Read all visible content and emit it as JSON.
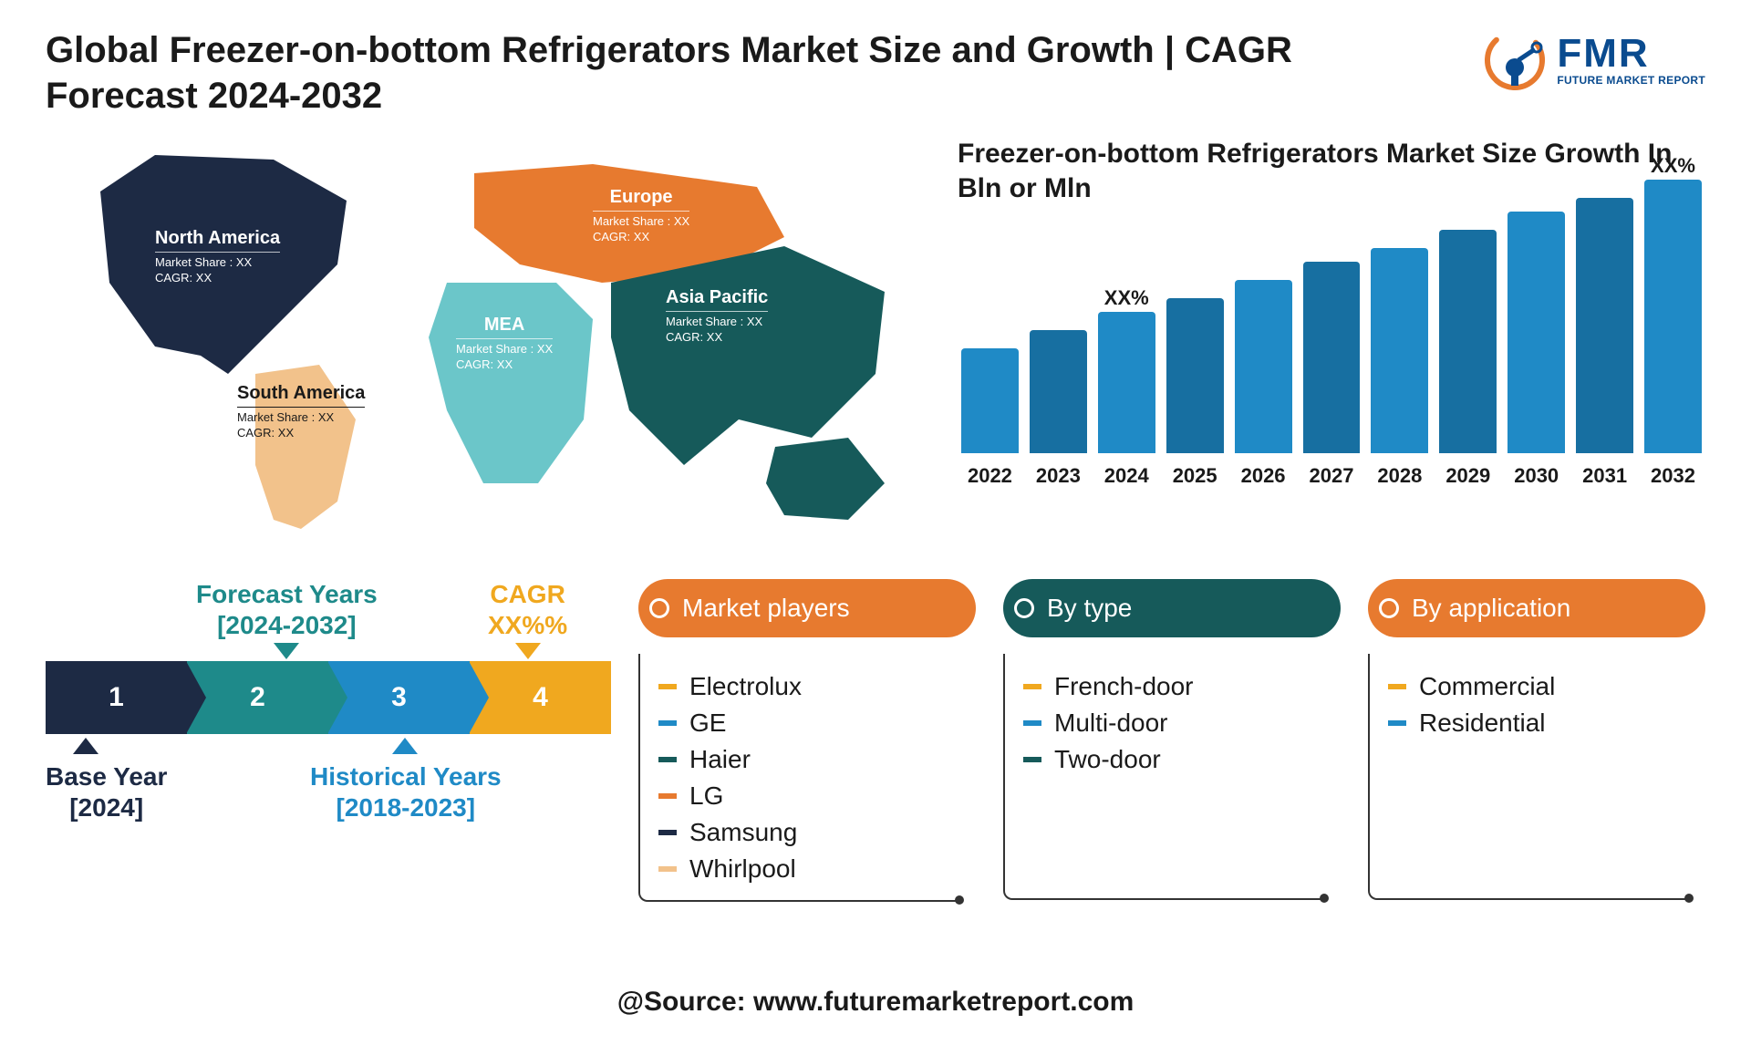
{
  "title": "Global Freezer-on-bottom Refrigerators Market Size and Growth | CAGR Forecast 2024-2032",
  "logo": {
    "fmr": "FMR",
    "sub": "FUTURE MARKET REPORT",
    "icon_color": "#e77a2f",
    "text_color": "#0a4b8f"
  },
  "palette": {
    "navy": "#1d2a44",
    "orange": "#e77a2f",
    "teal": "#1e8a8a",
    "teal_dark": "#165a5a",
    "darkteal": "#0f5c5c",
    "light_teal": "#6bc6c9",
    "sand": "#f2c28b",
    "blue": "#1f8ac6",
    "blue_dark": "#176fa1",
    "gold": "#f0a81f",
    "bar_blue": "#1f8ac6",
    "bar_dark": "#176fa1",
    "text": "#1a1a1a"
  },
  "map": {
    "regions": {
      "na": {
        "name": "North America",
        "sub1": "Market Share : XX",
        "sub2": "CAGR: XX",
        "color": "#1d2a44"
      },
      "sa": {
        "name": "South America",
        "sub1": "Market Share : XX",
        "sub2": "CAGR: XX",
        "color": "#f2c28b"
      },
      "eu": {
        "name": "Europe",
        "sub1": "Market Share : XX",
        "sub2": "CAGR: XX",
        "color": "#e77a2f"
      },
      "mea": {
        "name": "MEA",
        "sub1": "Market Share : XX",
        "sub2": "CAGR: XX",
        "color": "#6bc6c9"
      },
      "ap": {
        "name": "Asia Pacific",
        "sub1": "Market Share : XX",
        "sub2": "CAGR: XX",
        "color": "#165a5a"
      }
    }
  },
  "bar_chart": {
    "title": "Freezer-on-bottom Refrigerators Market Size Growth In Bln or Mln",
    "type": "bar",
    "years": [
      "2022",
      "2023",
      "2024",
      "2025",
      "2026",
      "2027",
      "2028",
      "2029",
      "2030",
      "2031",
      "2032"
    ],
    "heights": [
      115,
      135,
      155,
      170,
      190,
      210,
      225,
      245,
      265,
      280,
      300
    ],
    "colors": [
      "#1f8ac6",
      "#176fa1",
      "#1f8ac6",
      "#176fa1",
      "#1f8ac6",
      "#176fa1",
      "#1f8ac6",
      "#176fa1",
      "#1f8ac6",
      "#176fa1",
      "#1f8ac6"
    ],
    "annotations": {
      "2024": "XX%",
      "2032": "XX%"
    },
    "bar_gap": 12,
    "label_fontsize": 22,
    "background_color": "#ffffff"
  },
  "timeline": {
    "segments": [
      {
        "n": "1",
        "color": "#1d2a44"
      },
      {
        "n": "2",
        "color": "#1e8a8a"
      },
      {
        "n": "3",
        "color": "#1f8ac6"
      },
      {
        "n": "4",
        "color": "#f0a81f"
      }
    ],
    "labels": {
      "forecast": {
        "text1": "Forecast Years",
        "text2": "[2024-2032]",
        "color": "#1e8a8a"
      },
      "cagr": {
        "text1": "CAGR",
        "text2": "XX%%",
        "color": "#f0a81f"
      },
      "base": {
        "text1": "Base Year",
        "text2": "[2024]",
        "color": "#1d2a44"
      },
      "historical": {
        "text1": "Historical Years",
        "text2": "[2018-2023]",
        "color": "#1f8ac6"
      }
    }
  },
  "pills": {
    "players": {
      "title": "Market players",
      "color": "#e77a2f",
      "items": [
        "Electrolux",
        "GE",
        "Haier",
        "LG",
        "Samsung",
        "Whirlpool"
      ],
      "tick_colors": [
        "#f0a81f",
        "#1f8ac6",
        "#165a5a",
        "#e77a2f",
        "#1d2a44",
        "#f2c28b"
      ]
    },
    "type": {
      "title": "By type",
      "color": "#165a5a",
      "items": [
        "French-door",
        "Multi-door",
        "Two-door"
      ],
      "tick_colors": [
        "#f0a81f",
        "#1f8ac6",
        "#165a5a"
      ]
    },
    "application": {
      "title": "By application",
      "color": "#e77a2f",
      "items": [
        "Commercial",
        "Residential"
      ],
      "tick_colors": [
        "#f0a81f",
        "#1f8ac6"
      ]
    }
  },
  "source": "@Source: www.futuremarketreport.com"
}
